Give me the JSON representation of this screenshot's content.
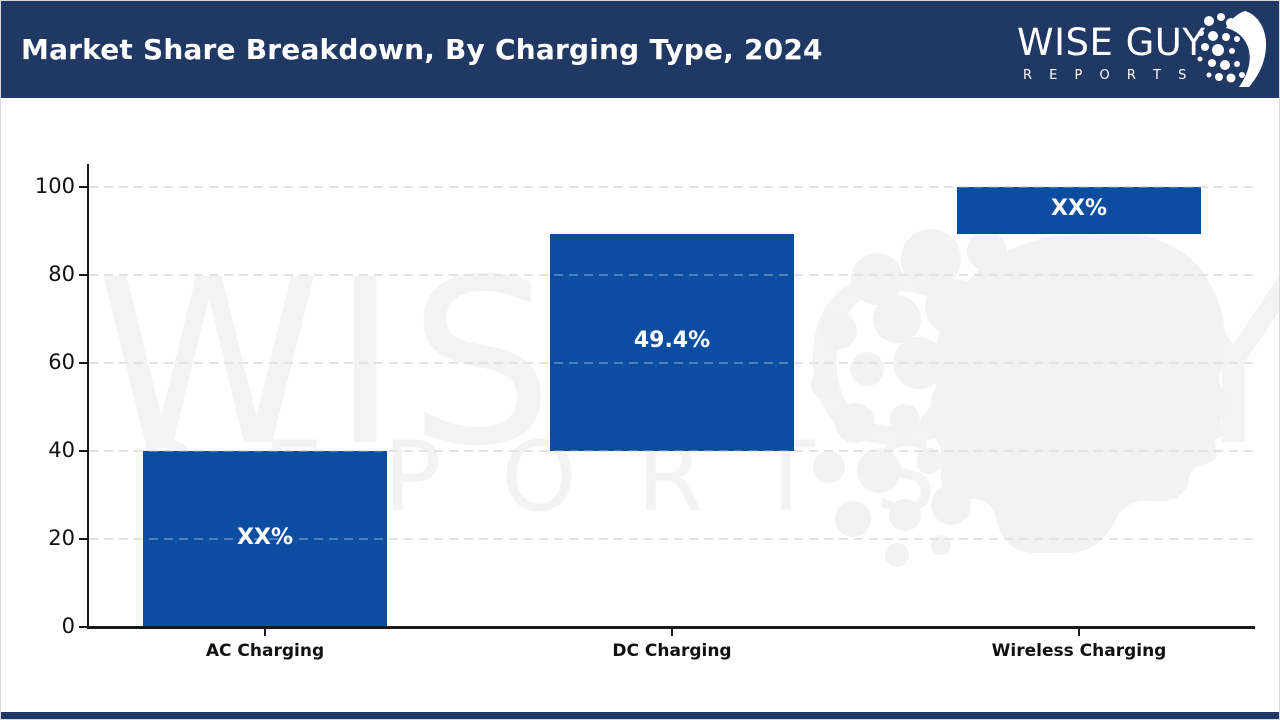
{
  "header": {
    "title": "Market Share Breakdown, By Charging Type, 2024",
    "logo": {
      "line1": "WISE GUY",
      "line2": "R E P O R T S"
    }
  },
  "watermark": {
    "line1": "WISE GUY",
    "line2": "REPORTS"
  },
  "colors": {
    "header_bg": "#203864",
    "bar": "#0c4da2",
    "gridline": "#d8d8d8",
    "axis": "#1a1a1a",
    "title_text": "#ffffff",
    "bar_label_text": "#ffffff",
    "watermark": "#f3f3f3"
  },
  "chart_data": {
    "type": "bar",
    "subtype": "floating-segment waterfall, vertical",
    "title": "Market Share Breakdown, By Charging Type, 2024",
    "categories": [
      "AC Charging",
      "DC Charging",
      "Wireless Charging"
    ],
    "segments": [
      {
        "category": "AC Charging",
        "start": 0,
        "end": 40,
        "value_label": "XX%"
      },
      {
        "category": "DC Charging",
        "start": 40,
        "end": 89.4,
        "value_label": "49.4%"
      },
      {
        "category": "Wireless Charging",
        "start": 89.4,
        "end": 100,
        "value_label": "XX%"
      }
    ],
    "xlabel": "",
    "ylabel": "",
    "ylim": [
      0,
      100
    ],
    "y_ticks": [
      0,
      20,
      40,
      60,
      80,
      100
    ],
    "grid": "horizontal dashed, drawn over bars",
    "legend": "none"
  }
}
